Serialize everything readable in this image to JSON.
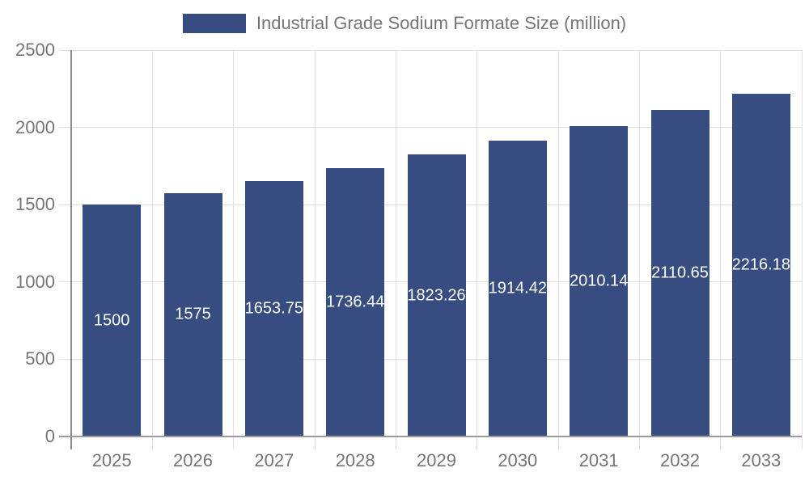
{
  "legend": {
    "label": "Industrial Grade Sodium Formate Size (million)",
    "swatch_color": "#374C80"
  },
  "chart_data": {
    "type": "bar",
    "title": "Industrial Grade Sodium Formate Size (million)",
    "categories": [
      "2025",
      "2026",
      "2027",
      "2028",
      "2029",
      "2030",
      "2031",
      "2032",
      "2033"
    ],
    "values": [
      1500,
      1575,
      1653.75,
      1736.44,
      1823.26,
      1914.42,
      2010.14,
      2110.65,
      2216.18
    ],
    "value_labels": [
      "1500",
      "1575",
      "1653.75",
      "1736.44",
      "1823.26",
      "1914.42",
      "2010.14",
      "2110.65",
      "2216.18"
    ],
    "xlabel": "",
    "ylabel": "",
    "ylim": [
      0,
      2500
    ],
    "yticks": [
      0,
      500,
      1000,
      1500,
      2000,
      2500
    ],
    "grid": true,
    "legend_position": "top",
    "bar_color": "#374C80",
    "value_label_color": "#ffffff",
    "axis_text_color": "#757575",
    "grid_color": "#e0e0e0"
  }
}
